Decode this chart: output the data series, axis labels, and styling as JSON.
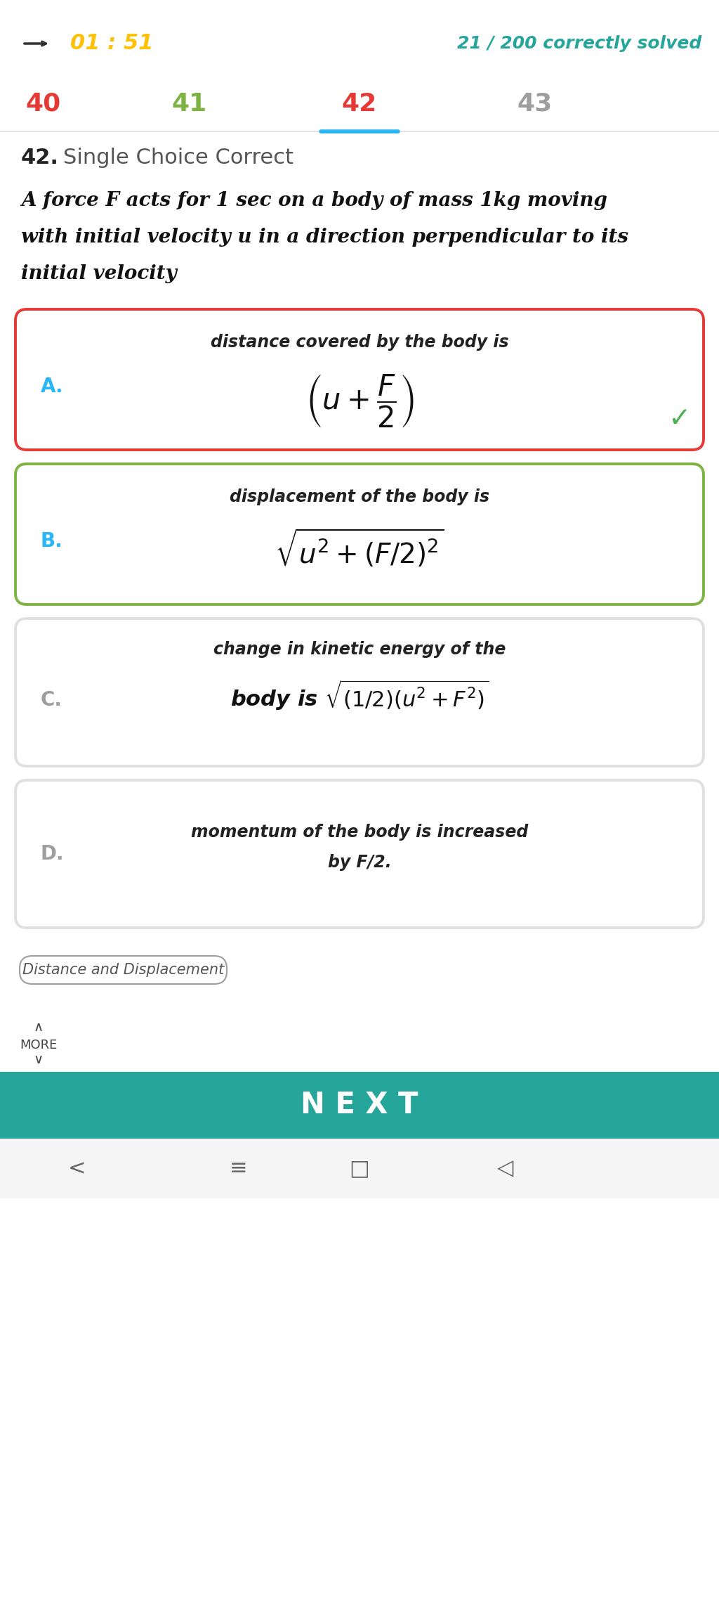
{
  "bg_color": "#ffffff",
  "timer_text": "01 : 51",
  "timer_color": "#FFC107",
  "solved_text": "21 / 200 correctly solved",
  "solved_color": "#26A69A",
  "arrow_color": "#333333",
  "tab_numbers": [
    "40",
    "41",
    "42",
    "43"
  ],
  "tab_colors": [
    "#E53935",
    "#7CB342",
    "#E53935",
    "#9E9E9E"
  ],
  "tab_indicator_color": "#29B6F6",
  "active_tab_index": 2,
  "question_number": "42.",
  "question_type": "Single Choice Correct",
  "question_text_lines": [
    "A force F acts for 1 sec on a body of mass 1kg moving",
    "with initial velocity u in a direction perpendicular to its",
    "initial velocity"
  ],
  "option_A_label": "A.",
  "option_A_label_color": "#29B6F6",
  "option_A_title": "distance covered by the body is",
  "option_A_border": "#E53935",
  "option_A_correct": true,
  "option_B_label": "B.",
  "option_B_label_color": "#29B6F6",
  "option_B_title": "displacement of the body is",
  "option_B_border": "#7CB342",
  "option_C_label": "C.",
  "option_C_label_color": "#9E9E9E",
  "option_C_title_line1": "change in kinetic energy of the",
  "option_C_title_line2": "body is",
  "option_C_border": "#E0E0E0",
  "option_D_label": "D.",
  "option_D_label_color": "#9E9E9E",
  "option_D_title_line1": "momentum of the body is increased",
  "option_D_title_line2": "by F/2.",
  "option_D_border": "#E0E0E0",
  "tag_text": "Distance and Displacement",
  "tag_border": "#9E9E9E",
  "footer_bg": "#26A69A",
  "footer_text": "N E X T",
  "footer_text_color": "#ffffff",
  "more_text": "MORE",
  "more_color": "#444444",
  "nav_bar_color": "#F5F5F5",
  "checkmark_color": "#4CAF50",
  "separator_color": "#DDDDDD"
}
